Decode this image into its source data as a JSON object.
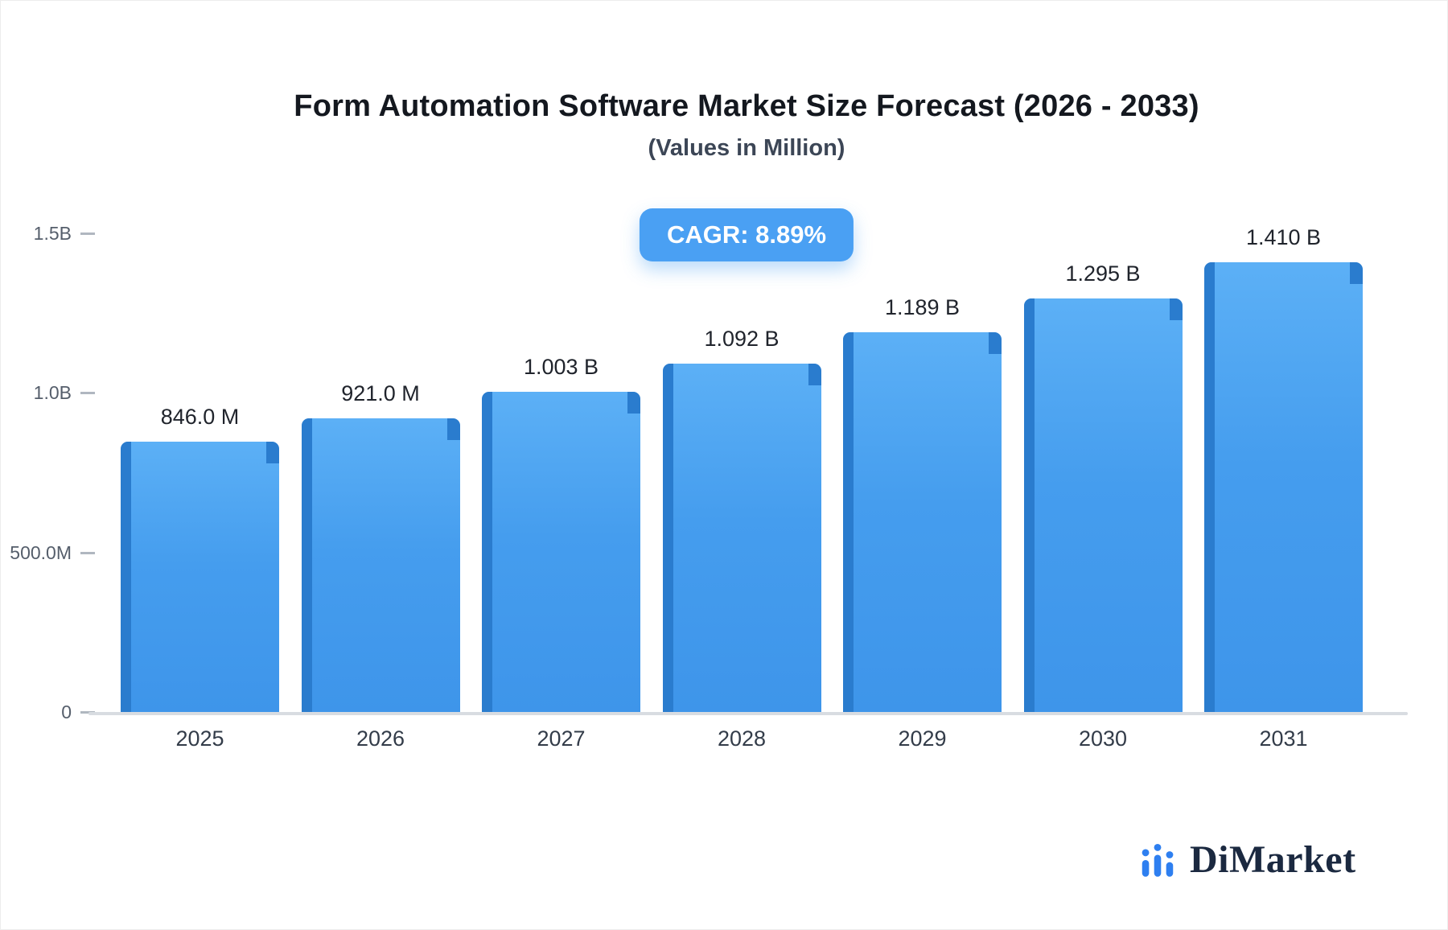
{
  "header": {
    "title": "Form Automation Software Market Size Forecast (2026 - 2033)",
    "subtitle": "(Values in Million)"
  },
  "badge": {
    "label": "CAGR: 8.89%"
  },
  "brand": {
    "name": "DiMarket"
  },
  "colors": {
    "bar_main": "#3e95ea",
    "bar_light": "#5cb0f6",
    "bar_dark_edge": "#2a7cce",
    "badge_background": "#4aa0f3",
    "badge_text": "#ffffff",
    "axis_line": "#d8dce1",
    "brand_text": "#1b2940",
    "brand_icon": "#2e7ff0"
  },
  "chart_data": {
    "type": "bar",
    "title": "Form Automation Software Market Size Forecast (2026 - 2033)",
    "subtitle": "(Values in Million)",
    "categories": [
      "2025",
      "2026",
      "2027",
      "2028",
      "2029",
      "2030",
      "2031"
    ],
    "values": [
      846,
      921,
      1003,
      1092,
      1189,
      1295,
      1410
    ],
    "value_labels": [
      "846.0 M",
      "921.0 M",
      "1.003 B",
      "1.092 B",
      "1.189 B",
      "1.295 B",
      "1.410 B"
    ],
    "unit": "millions",
    "xlabel": "",
    "ylabel": "",
    "ylim": [
      0,
      1500
    ],
    "yticks": [
      {
        "value": 0,
        "label": "0"
      },
      {
        "value": 500,
        "label": "500.0M"
      },
      {
        "value": 1000,
        "label": "1.0B"
      },
      {
        "value": 1500,
        "label": "1.5B"
      }
    ],
    "grid": false,
    "legend": false,
    "annotation": "CAGR: 8.89%"
  }
}
